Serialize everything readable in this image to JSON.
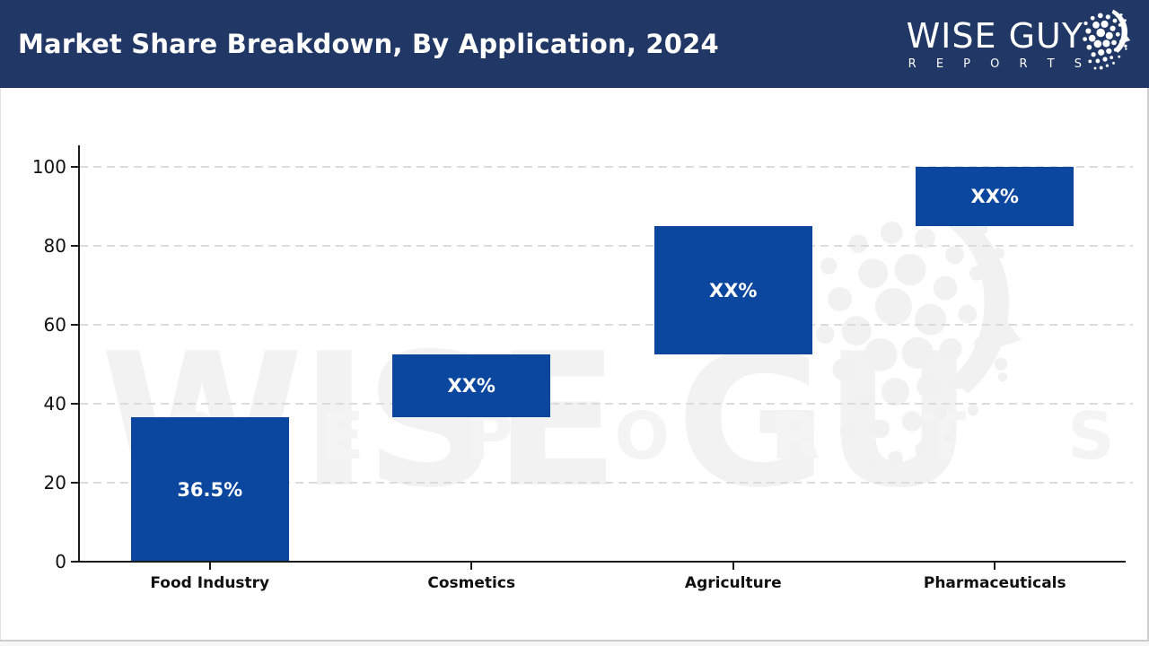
{
  "header": {
    "title": "Market Share Breakdown, By Application, 2024",
    "logo": {
      "brand_top": "WISE GUY",
      "brand_bottom": "R E P O R T S",
      "head_icon": "dotted-face-profile"
    }
  },
  "watermark": {
    "text_top": "WISE GU",
    "text_bottom": "R E P O R T S",
    "head_icon": "dotted-face-profile"
  },
  "chart_data": {
    "type": "bar",
    "variant": "waterfall",
    "title": "Market Share Breakdown, By Application, 2024",
    "categories": [
      "Food Industry",
      "Cosmetics",
      "Agriculture",
      "Pharmaceuticals"
    ],
    "segments": [
      {
        "category": "Food Industry",
        "start": 0,
        "end": 36.5,
        "label": "36.5%"
      },
      {
        "category": "Cosmetics",
        "start": 36.5,
        "end": 52.5,
        "label": "XX%"
      },
      {
        "category": "Agriculture",
        "start": 52.5,
        "end": 85,
        "label": "XX%"
      },
      {
        "category": "Pharmaceuticals",
        "start": 85,
        "end": 100,
        "label": "XX%"
      }
    ],
    "ylim": [
      0,
      100
    ],
    "yticks": [
      0,
      20,
      40,
      60,
      80,
      100
    ],
    "xlabel": "",
    "ylabel": "",
    "grid": "horizontal-dashed",
    "legend": null
  },
  "colors": {
    "header_bg": "#213765",
    "bar": "#0b479e",
    "bar_label": "#ffffff",
    "axis": "#1a1a1a",
    "grid": "#dcdcdc",
    "watermark": "#f2f2f2"
  }
}
